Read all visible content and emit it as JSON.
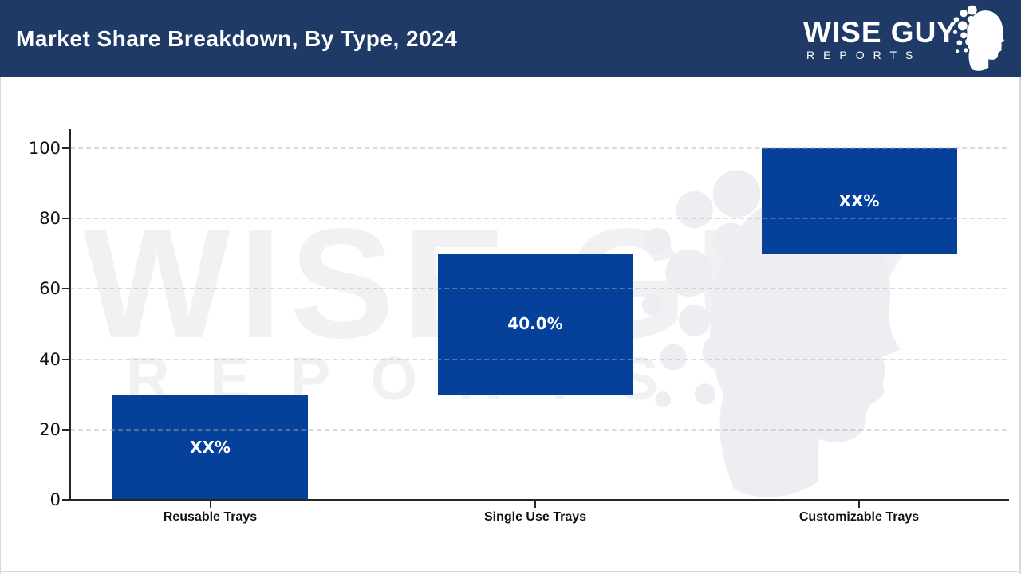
{
  "header": {
    "title": "Market Share Breakdown, By Type, 2024",
    "brand_line1": "WISE GUY",
    "brand_line2": "REPORTS"
  },
  "watermark": {
    "line1": "WISE GUY",
    "line2": "REPORTS"
  },
  "chart_data": {
    "type": "bar",
    "subtype": "floating-stacked-waterfall",
    "title": "Market Share Breakdown, By Type, 2024",
    "categories": [
      "Reusable Trays",
      "Single Use Trays",
      "Customizable Trays"
    ],
    "series": [
      {
        "name": "Market Share",
        "segments": [
          {
            "category": "Reusable Trays",
            "from": 0,
            "to": 30,
            "label": "XX%"
          },
          {
            "category": "Single Use Trays",
            "from": 30,
            "to": 70,
            "label": "40.0%"
          },
          {
            "category": "Customizable Trays",
            "from": 70,
            "to": 100,
            "label": "XX%"
          }
        ]
      }
    ],
    "xlabel": "",
    "ylabel": "",
    "ylim": [
      0,
      106
    ],
    "yticks": [
      0,
      20,
      40,
      60,
      80,
      100
    ],
    "grid": "horizontal dashed, drawn over bars",
    "legend": "none"
  },
  "colors": {
    "header_bg": "#1f3a66",
    "bar_fill": "#05419b",
    "bar_label_text": "#ffffff",
    "axis": "#262626",
    "tick_text": "#111111",
    "gridline": "#c9c9c9",
    "watermark": "#f1f1f4",
    "page_bg": "#ffffff",
    "edge_line": "#d9d9d9"
  }
}
